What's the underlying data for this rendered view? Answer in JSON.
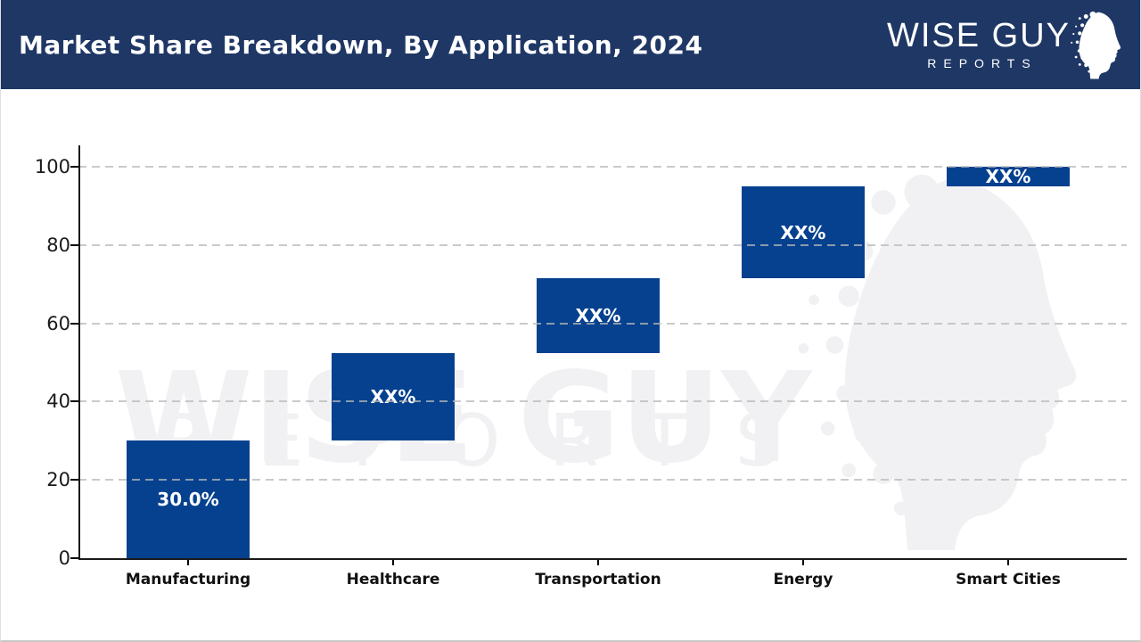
{
  "header": {
    "title": "Market Share Breakdown, By Application, 2024",
    "logo": {
      "line1": "WISE GUY",
      "line2": "REPORTS"
    }
  },
  "watermark": {
    "line1": "WISE GUY",
    "line2": "REPORTS"
  },
  "colors": {
    "header_bg": "#1f3765",
    "bar": "#06418f",
    "bar_label": "#ffffff",
    "grid": "#bcbcbc",
    "axis": "#1a1a1a",
    "watermark": "#f1f1f4",
    "bottom_rule": "#c9c9c9"
  },
  "chart_data": {
    "type": "bar",
    "subtype": "floating-waterfall",
    "title": "Market Share Breakdown, By Application, 2024",
    "categories": [
      "Manufacturing",
      "Healthcare",
      "Transportation",
      "Energy",
      "Smart Cities"
    ],
    "bars": [
      {
        "category": "Manufacturing",
        "start": 0,
        "end": 30,
        "segment_value": 30,
        "label": "30.0%"
      },
      {
        "category": "Healthcare",
        "start": 30,
        "end": 52.5,
        "segment_value": 22.5,
        "label": "XX%"
      },
      {
        "category": "Transportation",
        "start": 52.5,
        "end": 71.5,
        "segment_value": 19,
        "label": "XX%"
      },
      {
        "category": "Energy",
        "start": 71.5,
        "end": 95,
        "segment_value": 23.5,
        "label": "XX%"
      },
      {
        "category": "Smart Cities",
        "start": 95,
        "end": 100,
        "segment_value": 5,
        "label": "XX%"
      }
    ],
    "yticks": [
      0,
      20,
      40,
      60,
      80,
      100
    ],
    "ylim": [
      0,
      105
    ],
    "xlabel": "",
    "ylabel": "",
    "grid": "horizontal-dashed",
    "legend": "none",
    "bar_color": "#06418f"
  }
}
